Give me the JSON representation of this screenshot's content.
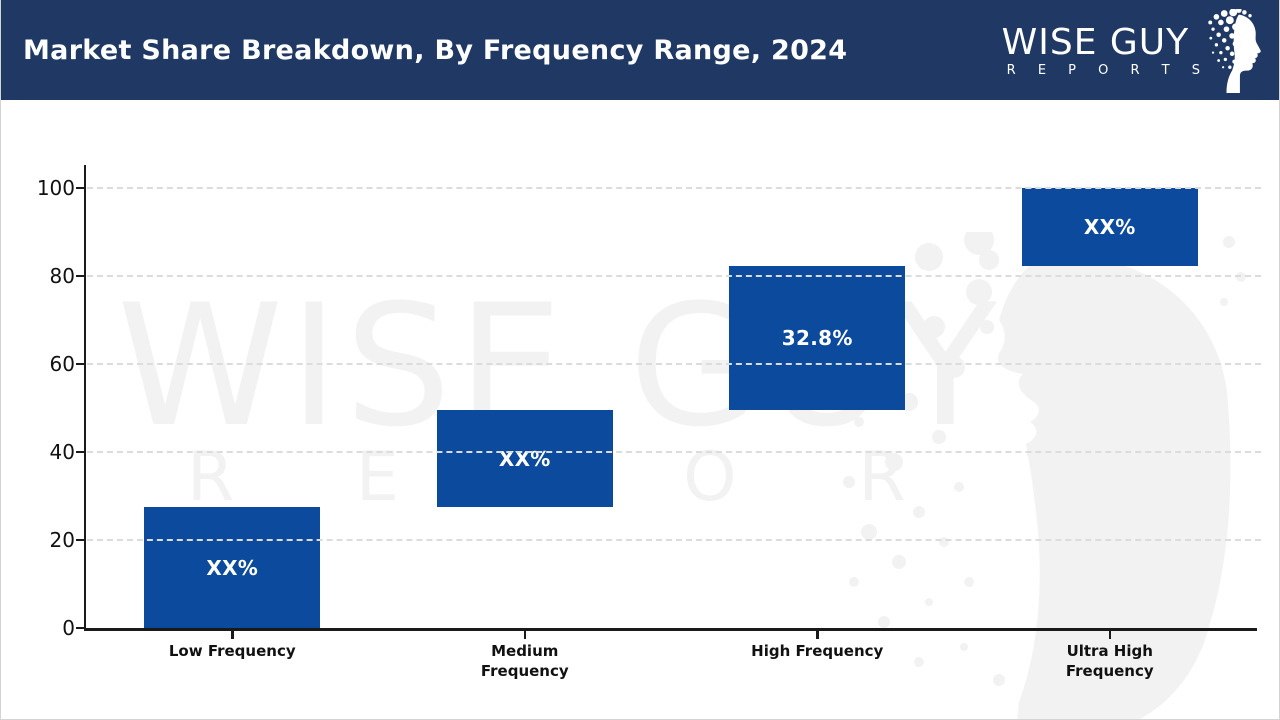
{
  "header": {
    "title": "Market Share Breakdown, By Frequency Range, 2024",
    "logo_line1": "WISE GUY",
    "logo_line2": "R E P O R T S",
    "bg_color": "#1f3864"
  },
  "watermark": {
    "line1": "WISE GUY",
    "line2": "R E P O R T S",
    "color": "#f2f2f2"
  },
  "chart_data": {
    "type": "bar",
    "subtype": "floating-waterfall",
    "title": "Market Share Breakdown, By Frequency Range, 2024",
    "categories": [
      "Low Frequency",
      "Medium Frequency",
      "High Frequency",
      "Ultra High Frequency"
    ],
    "bars": [
      {
        "category": "Low Frequency",
        "start": 0,
        "end": 27.5,
        "label": "XX%"
      },
      {
        "category": "Medium Frequency",
        "start": 27.5,
        "end": 49.5,
        "label": "XX%"
      },
      {
        "category": "High Frequency",
        "start": 49.5,
        "end": 82.3,
        "label": "32.8%"
      },
      {
        "category": "Ultra High Frequency",
        "start": 82.3,
        "end": 100,
        "label": "XX%"
      }
    ],
    "ylim": [
      0,
      100
    ],
    "yticks": [
      0,
      20,
      40,
      60,
      80,
      100
    ],
    "grid": {
      "horizontal": true,
      "style": "dashed",
      "color": "#dcdcdc"
    },
    "bar_color": "#0b4a9c",
    "bar_label_color": "#ffffff",
    "axis_color": "#1a1a1a",
    "legend": "none"
  }
}
